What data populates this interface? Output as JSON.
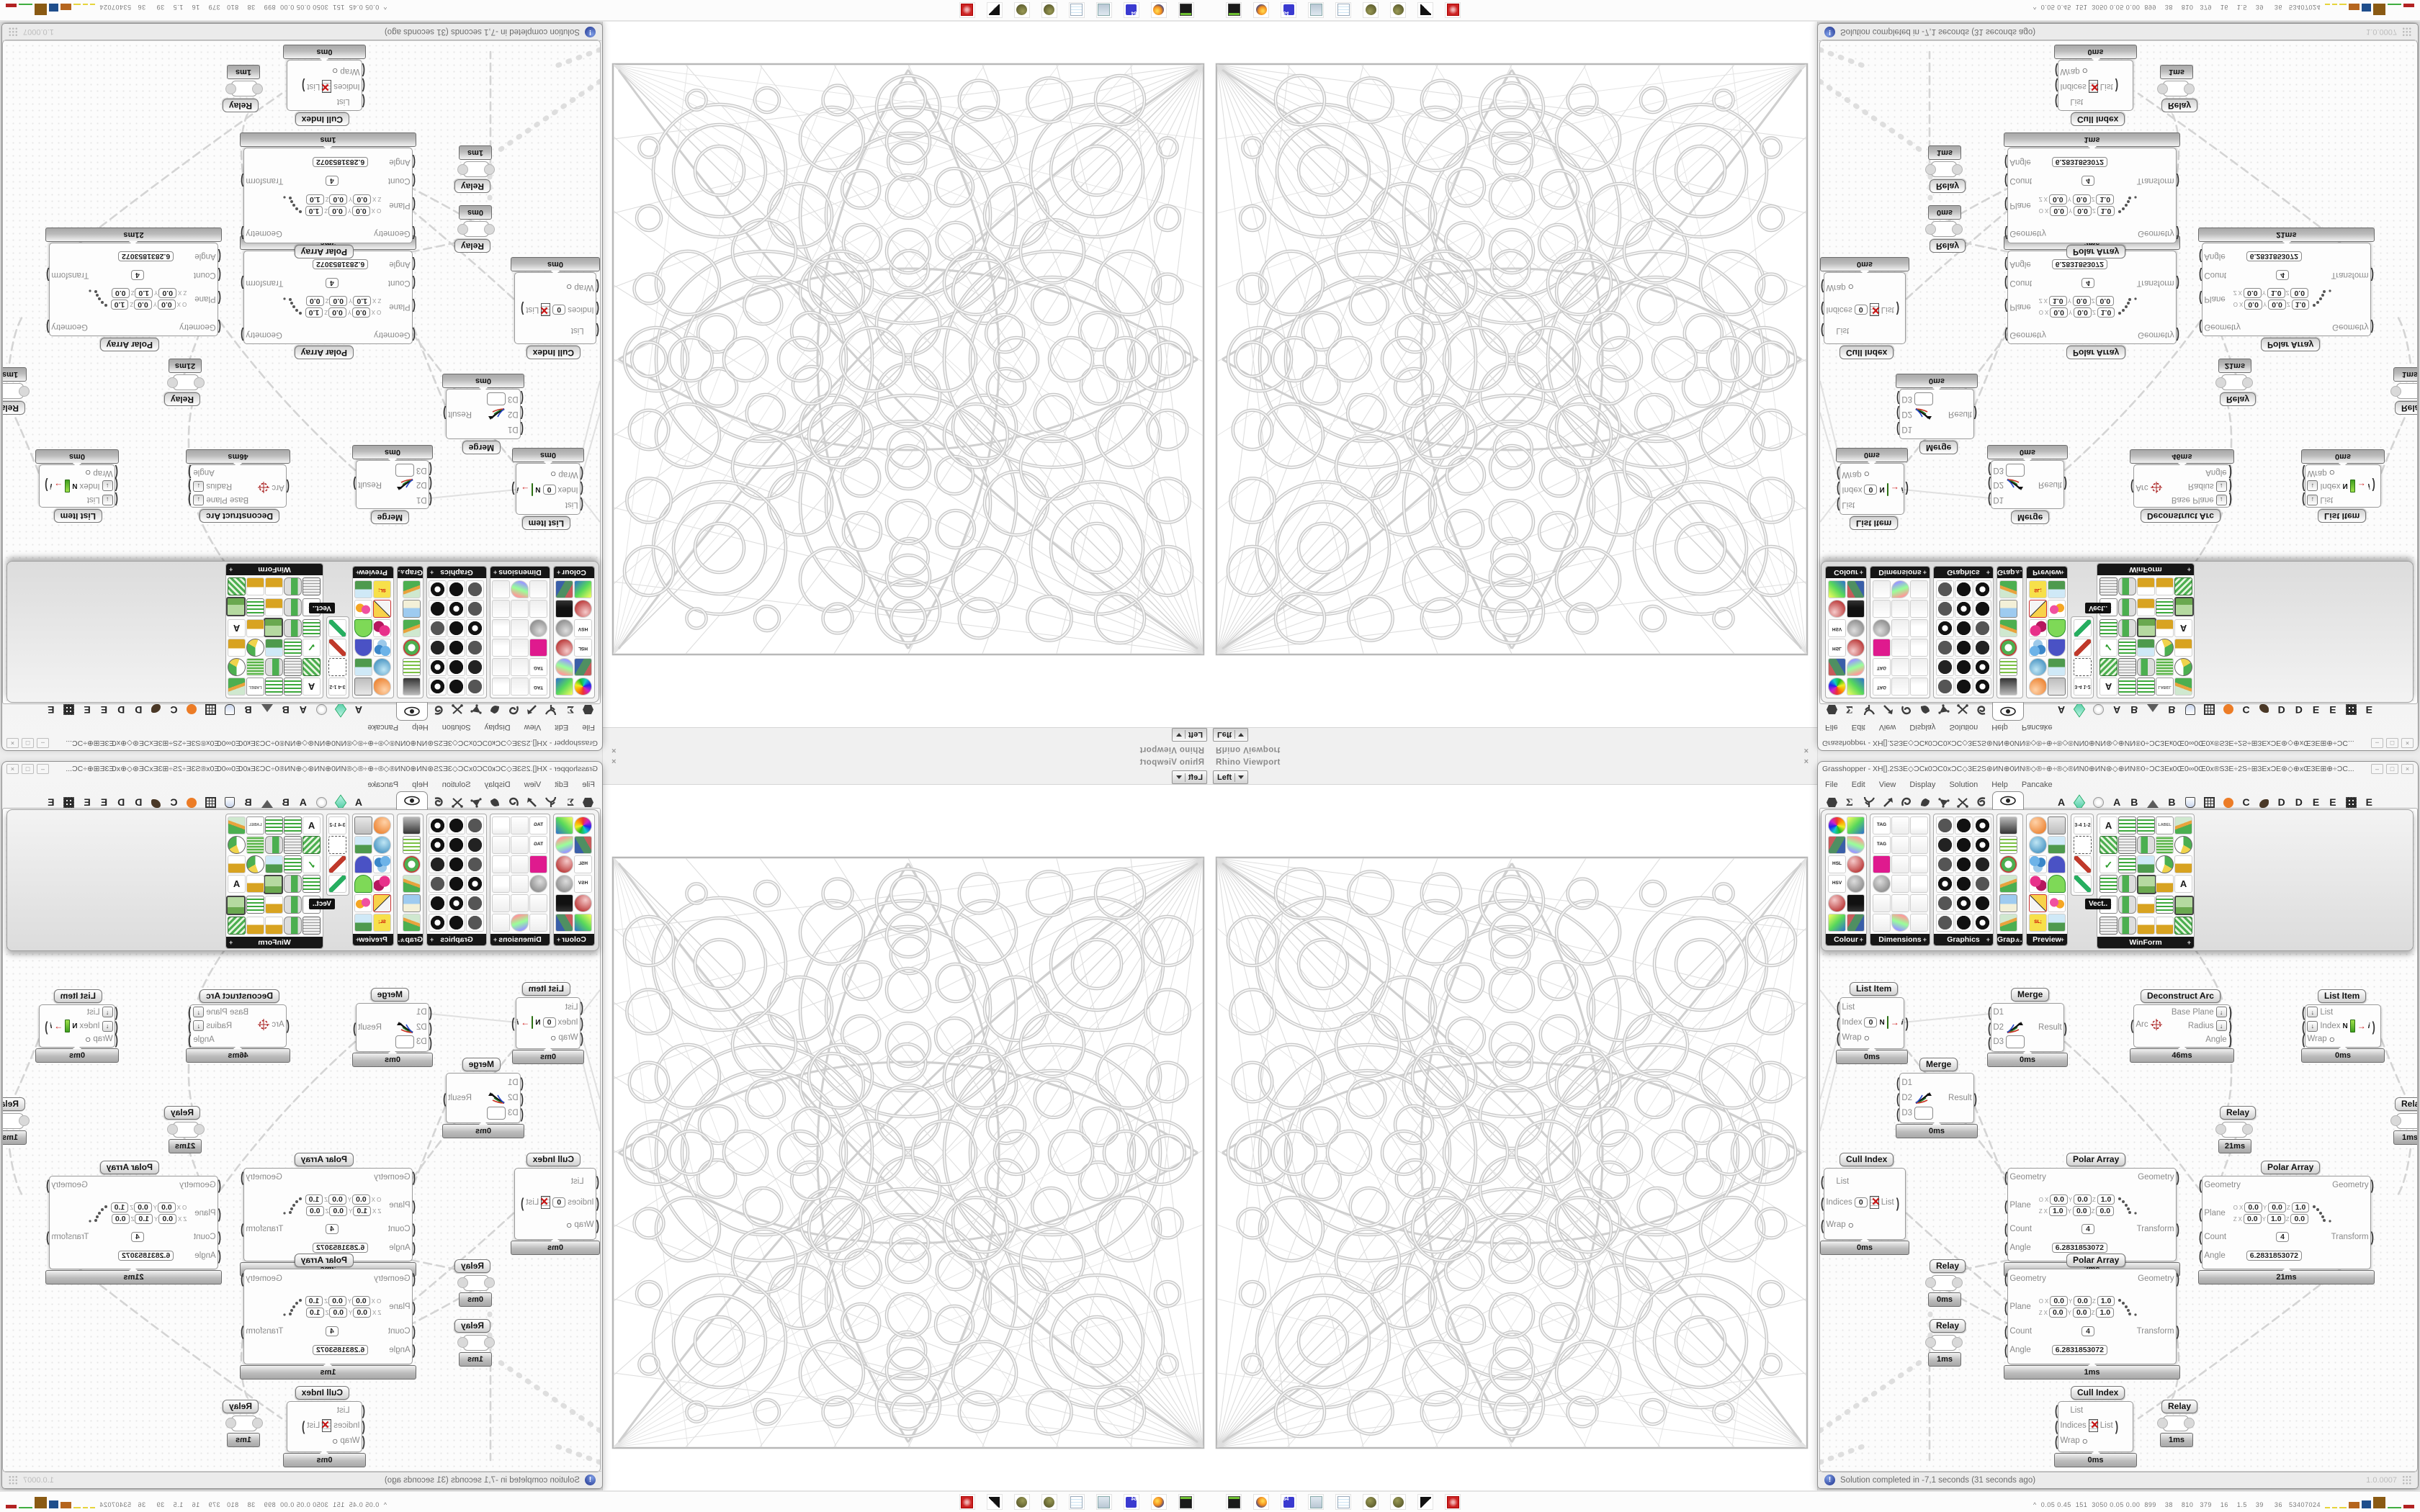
{
  "rhino": {
    "panel_title": "Rhino Viewport",
    "close_glyph": "×",
    "viewport_tab": "Left"
  },
  "gh": {
    "title": "Grasshopper - XH[].2S3E◇ƆCк0ƆC0хƆC◇3E2S⊛ИN⊕0ИN®◇®÷⊕÷®◇®ИN0⊕ИN⊛◇⊕ИN®0÷ƆC3Eк0Œ0∞0Œ0х®S3E÷2S÷⊞3EхƆE⊛◇⊕хŒ3E⊞⊕÷ƆC...",
    "win_buttons": [
      "–",
      "□",
      "×"
    ],
    "menus": [
      "File",
      "Edit",
      "View",
      "Display",
      "Solution",
      "Help",
      "Pancake"
    ],
    "plugin_tabs": [
      "A",
      "A",
      "B",
      "B",
      "C",
      "D",
      "D",
      "E",
      "E",
      "E"
    ],
    "palette": {
      "groups": [
        "Colour",
        "Dimensions",
        "Graphics",
        "Grap…",
        "Preview",
        "WinForm"
      ],
      "tooltip": "Vect..",
      "labels": {
        "hsl": "HSL",
        "hsv": "HSV",
        "tag": "TAG",
        "label": "LABEL",
        "ok": "OK",
        "sl": "SL;",
        "a_glyph": "A",
        "range": "3-4 1-2"
      }
    },
    "status": {
      "message": "Solution completed in -7,1 seconds (31 seconds ago)",
      "version": "1.0.0007"
    },
    "nodes": {
      "list_item_1": {
        "tag": "List Item",
        "ports_in": [
          "List",
          "Index",
          "Wrap"
        ],
        "index_value": "0",
        "icon_n": "N",
        "icon_i": "i",
        "port_out": "i",
        "time": "0ms"
      },
      "merge_1": {
        "tag": "Merge",
        "ports_in": [
          "D1",
          "D2",
          "D3"
        ],
        "port_out": "Result",
        "time": "0ms"
      },
      "merge_2": {
        "tag": "Merge",
        "ports_in": [
          "D1",
          "D2",
          "D3"
        ],
        "port_out": "Result",
        "time": "0ms"
      },
      "decon_arc": {
        "tag": "Deconstruct Arc",
        "ports_in": [
          "Arc"
        ],
        "ports_out": [
          "Base Plane",
          "Radius",
          "Angle"
        ],
        "time": "46ms"
      },
      "list_item_2": {
        "tag": "List Item",
        "ports_in": [
          "List",
          "Index",
          "Wrap"
        ],
        "icon_n": "N",
        "icon_i": "i",
        "port_out": "i",
        "time": "0ms"
      },
      "cull_index_1": {
        "tag": "Cull Index",
        "ports_in": [
          "List",
          "Indices",
          "Wrap"
        ],
        "indices_value": "0",
        "port_out": "List",
        "time": "0ms"
      },
      "cull_index_2": {
        "tag": "Cull Index",
        "ports_in": [
          "List",
          "Indices",
          "Wrap"
        ],
        "port_out": "List",
        "time": "0ms"
      },
      "polar_array_1": {
        "tag": "Polar Array",
        "ports_in": [
          "Geometry",
          "Plane",
          "Count",
          "Angle"
        ],
        "ports_out": [
          "Geometry",
          "Transform"
        ],
        "plane_rows": [
          "O",
          "Z"
        ],
        "xyz": [
          "X",
          "Y",
          "Z"
        ],
        "plane_o": [
          "0.0",
          "0.0",
          "1.0"
        ],
        "plane_z": [
          "1.0",
          "0.0",
          "0.0"
        ],
        "count_value": "4",
        "angle_value": "6.2831853072",
        "time": "2ms"
      },
      "polar_array_2": {
        "tag": "Polar Array",
        "ports_in": [
          "Geometry",
          "Plane",
          "Count",
          "Angle"
        ],
        "ports_out": [
          "Geometry",
          "Transform"
        ],
        "plane_rows": [
          "O",
          "Z"
        ],
        "xyz": [
          "X",
          "Y",
          "Z"
        ],
        "plane_o": [
          "0.0",
          "0.0",
          "1.0"
        ],
        "plane_z": [
          "0.0",
          "1.0",
          "0.0"
        ],
        "count_value": "4",
        "angle_value": "6.2831853072",
        "time": "21ms"
      },
      "polar_array_3": {
        "tag": "Polar Array",
        "ports_in": [
          "Geometry",
          "Plane",
          "Count",
          "Angle"
        ],
        "ports_out": [
          "Geometry",
          "Transform"
        ],
        "plane_rows": [
          "O",
          "Z"
        ],
        "xyz": [
          "X",
          "Y",
          "Z"
        ],
        "plane_o": [
          "0.0",
          "0.0",
          "1.0"
        ],
        "plane_z": [
          "0.0",
          "0.0",
          "1.0"
        ],
        "count_value": "4",
        "angle_value": "6.2831853072",
        "time": "1ms"
      }
    },
    "relays": [
      {
        "label": "Relay",
        "time": "21ms"
      },
      {
        "label": "Relay",
        "time": "1ms"
      },
      {
        "label": "Relay",
        "time": "0ms"
      },
      {
        "label": "Relay",
        "time": "1ms"
      },
      {
        "label": "Relay",
        "time": "1ms"
      }
    ]
  },
  "taskbar": {
    "monitor_caret": "^",
    "monitor_text": "0.05 0.45  151  3050 0.05 0.00  899    38    810   379    16    1.5    39     36   53407024",
    "floppy_label": "64",
    "icons": [
      "gpu-settings",
      "firefox",
      "floppy-64",
      "script-scroll",
      "notepad",
      "badge-olive",
      "badge-olive-2",
      "chess-knight",
      "badge-red"
    ]
  }
}
